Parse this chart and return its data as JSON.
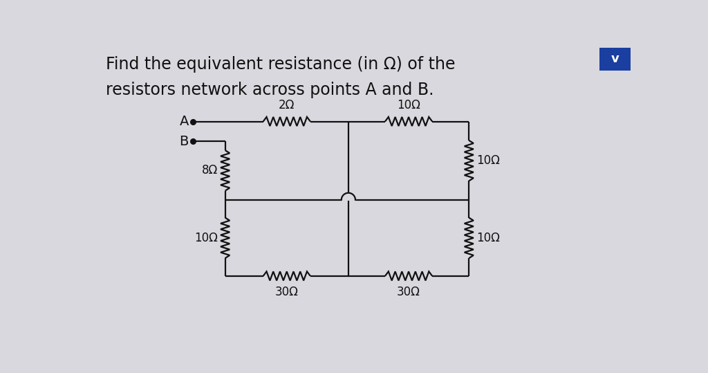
{
  "title_line1": "Find the equivalent resistance (in Ω) of the",
  "title_line2": "resistors network across points A and B.",
  "bg_color": "#d8d8de",
  "text_color": "#111111",
  "circuit_color": "#111111",
  "badge_bg": "#1a3fa0",
  "badge_text": "v",
  "node_A": "A",
  "node_B": "B",
  "R2": "2Ω",
  "R10_top": "10Ω",
  "R8": "8Ω",
  "R10_left": "10Ω",
  "R10_right_top": "10Ω",
  "R10_right_bot": "10Ω",
  "R30_left": "30Ω",
  "R30_right": "30Ω",
  "xA": 1.95,
  "xl": 2.55,
  "xm": 4.85,
  "xr": 7.1,
  "yt": 3.95,
  "yB": 3.58,
  "ym": 2.48,
  "yb": 1.05,
  "figsize": [
    10.24,
    5.39
  ],
  "dpi": 100
}
